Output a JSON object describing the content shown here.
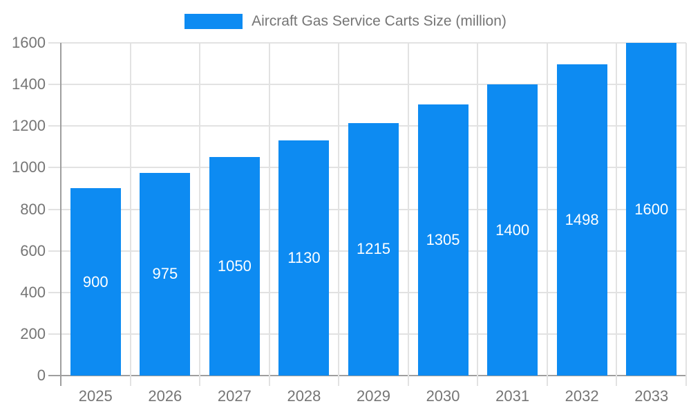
{
  "chart_data": {
    "type": "bar",
    "title": "Aircraft Gas Service Carts Size (million)",
    "categories": [
      "2025",
      "2026",
      "2027",
      "2028",
      "2029",
      "2030",
      "2031",
      "2032",
      "2033"
    ],
    "values": [
      900,
      975,
      1050,
      1130,
      1215,
      1305,
      1400,
      1498,
      1600
    ],
    "value_labels": [
      "900",
      "975",
      "1050",
      "1130",
      "1215",
      "1305",
      "1400",
      "1498",
      "1600"
    ],
    "ylim": [
      0,
      1600
    ],
    "yticks": [
      0,
      200,
      400,
      600,
      800,
      1000,
      1200,
      1400,
      1600
    ],
    "ytick_labels": [
      "0",
      "200",
      "400",
      "600",
      "800",
      "1000",
      "1200",
      "1400",
      "1600"
    ],
    "grid": true,
    "legend_position": "top-center",
    "colors": {
      "bar": "#0d8bf2",
      "bar_label_text": "#ffffff",
      "axis_text": "#757575",
      "gridline": "#e2e2e2",
      "axis_line": "#9e9e9e",
      "background": "#ffffff"
    }
  },
  "legend": {
    "label": "Aircraft Gas Service Carts Size (million)"
  }
}
